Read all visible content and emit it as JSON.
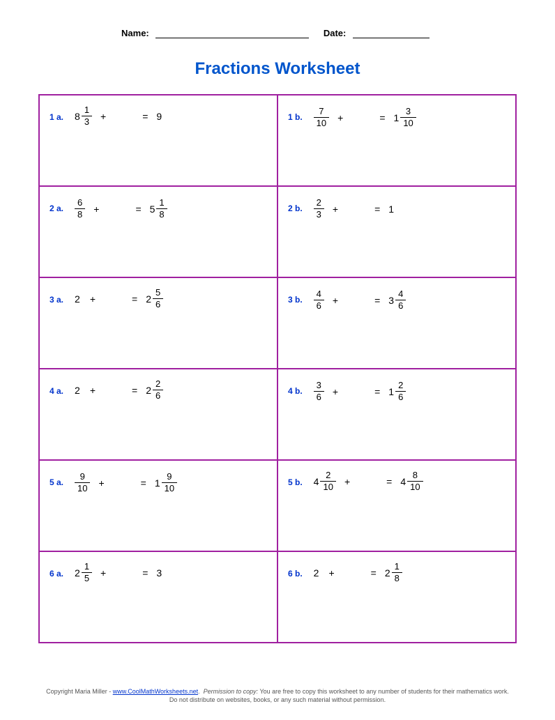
{
  "header": {
    "name_label": "Name:",
    "date_label": "Date:"
  },
  "title": "Fractions Worksheet",
  "border_color": "#a020a0",
  "label_color": "#0033cc",
  "title_color": "#0055cc",
  "problems": [
    {
      "label": "1 a.",
      "left": {
        "whole": "8",
        "num": "1",
        "den": "3"
      },
      "right": {
        "whole": "9",
        "num": "",
        "den": ""
      }
    },
    {
      "label": "1 b.",
      "left": {
        "whole": "",
        "num": "7",
        "den": "10"
      },
      "right": {
        "whole": "1",
        "num": "3",
        "den": "10"
      }
    },
    {
      "label": "2 a.",
      "left": {
        "whole": "",
        "num": "6",
        "den": "8"
      },
      "right": {
        "whole": "5",
        "num": "1",
        "den": "8"
      }
    },
    {
      "label": "2 b.",
      "left": {
        "whole": "",
        "num": "2",
        "den": "3"
      },
      "right": {
        "whole": "1",
        "num": "",
        "den": ""
      }
    },
    {
      "label": "3 a.",
      "left": {
        "whole": "2",
        "num": "",
        "den": ""
      },
      "right": {
        "whole": "2",
        "num": "5",
        "den": "6"
      }
    },
    {
      "label": "3 b.",
      "left": {
        "whole": "",
        "num": "4",
        "den": "6"
      },
      "right": {
        "whole": "3",
        "num": "4",
        "den": "6"
      }
    },
    {
      "label": "4 a.",
      "left": {
        "whole": "2",
        "num": "",
        "den": ""
      },
      "right": {
        "whole": "2",
        "num": "2",
        "den": "6"
      }
    },
    {
      "label": "4 b.",
      "left": {
        "whole": "",
        "num": "3",
        "den": "6"
      },
      "right": {
        "whole": "1",
        "num": "2",
        "den": "6"
      }
    },
    {
      "label": "5 a.",
      "left": {
        "whole": "",
        "num": "9",
        "den": "10"
      },
      "right": {
        "whole": "1",
        "num": "9",
        "den": "10"
      }
    },
    {
      "label": "5 b.",
      "left": {
        "whole": "4",
        "num": "2",
        "den": "10"
      },
      "right": {
        "whole": "4",
        "num": "8",
        "den": "10"
      }
    },
    {
      "label": "6 a.",
      "left": {
        "whole": "2",
        "num": "1",
        "den": "5"
      },
      "right": {
        "whole": "3",
        "num": "",
        "den": ""
      }
    },
    {
      "label": "6 b.",
      "left": {
        "whole": "2",
        "num": "",
        "den": ""
      },
      "right": {
        "whole": "2",
        "num": "1",
        "den": "8"
      }
    }
  ],
  "footer": {
    "copyright": "Copyright Maria Miller - ",
    "link_text": "www.CoolMathWorksheets.net",
    "permission_label": "Permission to copy:",
    "permission_text": " You are free to copy this worksheet to any number of students for their mathematics work. Do not distribute on websites, books, or any such material without permission."
  }
}
